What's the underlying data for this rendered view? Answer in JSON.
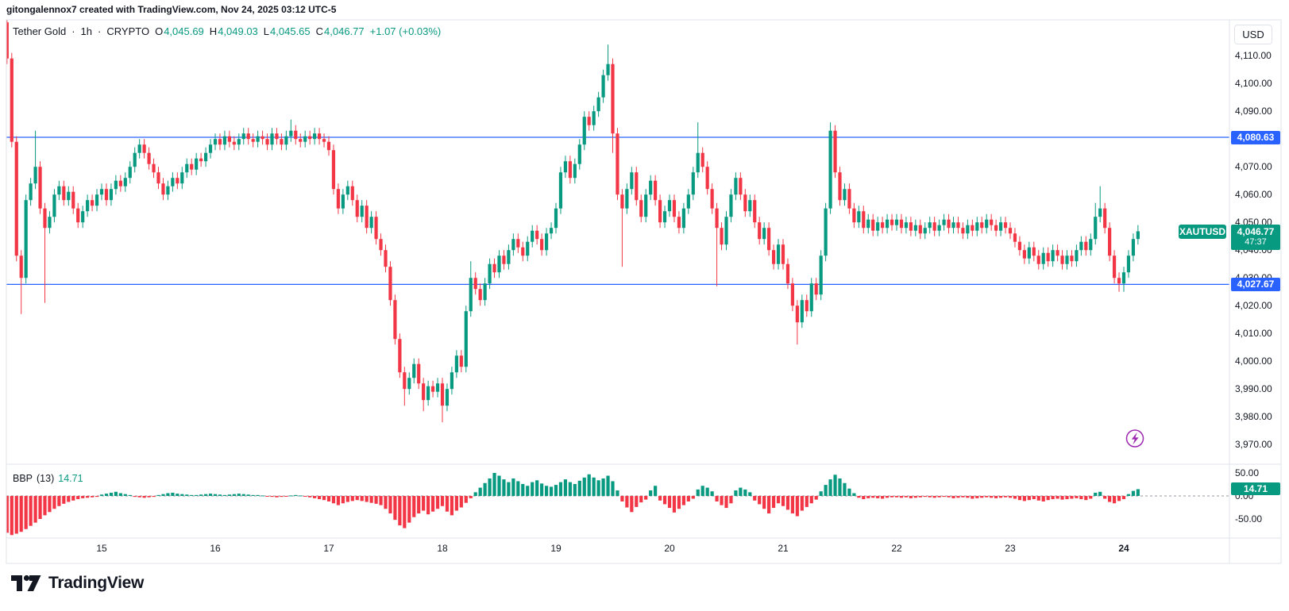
{
  "attribution": "gitongalennox7 created with TradingView.com, Nov 24, 2025 03:12 UTC-5",
  "header": {
    "title": "Tether Gold",
    "sep1": "·",
    "interval": "1h",
    "sep2": "·",
    "exchange": "CRYPTO",
    "o_label": "O",
    "o": "4,045.69",
    "h_label": "H",
    "h": "4,049.03",
    "l_label": "L",
    "l": "4,045.65",
    "c_label": "C",
    "c": "4,046.77",
    "change": "+1.07 (+0.03%)"
  },
  "price_axis": {
    "currency": "USD"
  },
  "indicator_legend": {
    "name": "BBP",
    "params": "(13)",
    "value": "14.71"
  },
  "logo": {
    "text": "TradingView"
  },
  "colors": {
    "up": "#089981",
    "down": "#F23645",
    "level_line": "#2962FF",
    "text": "#131722",
    "border": "#E0E3EB",
    "zero_dash": "#9598A1",
    "flash": "#9C27B0"
  },
  "chart_data": {
    "type": "candlestick",
    "title": "Tether Gold · 1h · CRYPTO",
    "symbol": "XAUTUSD",
    "interval": "1h",
    "x_labels": [
      "15",
      "16",
      "17",
      "18",
      "19",
      "20",
      "21",
      "22",
      "23",
      "24"
    ],
    "current_label_index": 9,
    "candles_per_day": 24,
    "first_label_candle_index": 20,
    "price_ylim": [
      3963,
      4118
    ],
    "price_ticks": [
      {
        "v": 4110,
        "label": "4,110.00"
      },
      {
        "v": 4100,
        "label": "4,100.00"
      },
      {
        "v": 4090,
        "label": "4,090.00"
      },
      {
        "v": 4070,
        "label": "4,070.00"
      },
      {
        "v": 4060,
        "label": "4,060.00"
      },
      {
        "v": 4050,
        "label": "4,050.00"
      },
      {
        "v": 4040,
        "label": "4,040.00"
      },
      {
        "v": 4030,
        "label": "4,030.00"
      },
      {
        "v": 4020,
        "label": "4,020.00"
      },
      {
        "v": 4010,
        "label": "4,010.00"
      },
      {
        "v": 4000,
        "label": "4,000.00"
      },
      {
        "v": 3990,
        "label": "3,990.00"
      },
      {
        "v": 3980,
        "label": "3,980.00"
      },
      {
        "v": 3970,
        "label": "3,970.00"
      }
    ],
    "levels": [
      {
        "v": 4080.63,
        "label": "4,080.63"
      },
      {
        "v": 4027.67,
        "label": "4,027.67"
      }
    ],
    "last": {
      "v": 4046.77,
      "label": "4,046.77",
      "countdown": "47:37",
      "tag": "XAUTUSD"
    },
    "first_open": 4122,
    "default_wick": 2,
    "closes": [
      4109,
      4079,
      4038,
      4030,
      4058,
      4064,
      4070,
      4055,
      4048,
      4052,
      4060,
      4063,
      4058,
      4061,
      4055,
      4050,
      4054,
      4058,
      4056,
      4060,
      4062,
      4058,
      4062,
      4065,
      4063,
      4066,
      4070,
      4075,
      4078,
      4075,
      4071,
      4068,
      4064,
      4060,
      4063,
      4066,
      4064,
      4068,
      4071,
      4069,
      4073,
      4072,
      4075,
      4078,
      4080,
      4078,
      4081,
      4079,
      4078,
      4080,
      4082,
      4080,
      4079,
      4081,
      4080,
      4078,
      4082,
      4080,
      4078,
      4081,
      4083,
      4080,
      4079,
      4081,
      4080,
      4082,
      4080,
      4079,
      4076,
      4062,
      4055,
      4060,
      4063,
      4058,
      4052,
      4056,
      4048,
      4052,
      4044,
      4040,
      4034,
      4022,
      4008,
      3996,
      3990,
      3994,
      3999,
      3992,
      3986,
      3991,
      3989,
      3992,
      3984,
      3990,
      3996,
      4002,
      3998,
      4018,
      4030,
      4026,
      4022,
      4028,
      4035,
      4032,
      4038,
      4035,
      4040,
      4044,
      4041,
      4038,
      4043,
      4047,
      4044,
      4040,
      4046,
      4048,
      4055,
      4068,
      4072,
      4066,
      4071,
      4078,
      4088,
      4085,
      4090,
      4095,
      4103,
      4107,
      4082,
      4060,
      4055,
      4062,
      4068,
      4058,
      4052,
      4060,
      4065,
      4058,
      4050,
      4054,
      4058,
      4052,
      4048,
      4055,
      4060,
      4068,
      4075,
      4070,
      4062,
      4055,
      4048,
      4042,
      4052,
      4060,
      4066,
      4060,
      4054,
      4058,
      4050,
      4044,
      4048,
      4040,
      4035,
      4042,
      4035,
      4028,
      4020,
      4014,
      4022,
      4018,
      4028,
      4024,
      4038,
      4055,
      4083,
      4068,
      4058,
      4062,
      4055,
      4050,
      4054,
      4048,
      4051,
      4047,
      4050,
      4048,
      4051,
      4049,
      4051,
      4048,
      4050,
      4047,
      4049,
      4046,
      4048,
      4050,
      4047,
      4049,
      4051,
      4048,
      4050,
      4048,
      4046,
      4049,
      4047,
      4050,
      4048,
      4051,
      4049,
      4047,
      4050,
      4048,
      4046,
      4043,
      4040,
      4037,
      4041,
      4038,
      4035,
      4039,
      4036,
      4040,
      4038,
      4035,
      4038,
      4036,
      4040,
      4043,
      4040,
      4044,
      4052,
      4055,
      4048,
      4038,
      4030,
      4028,
      4032,
      4038,
      4044,
      4046.77
    ],
    "wick_overrides": {
      "0": [
        4123,
        null
      ],
      "3": [
        null,
        4017
      ],
      "6": [
        4083,
        null
      ],
      "8": [
        null,
        4021
      ],
      "60": [
        4087,
        null
      ],
      "84": [
        null,
        3984
      ],
      "88": [
        null,
        3982
      ],
      "92": [
        null,
        3978
      ],
      "98": [
        4036,
        null
      ],
      "127": [
        4114,
        null
      ],
      "128": [
        null,
        4075
      ],
      "130": [
        null,
        4034
      ],
      "146": [
        4086,
        null
      ],
      "150": [
        null,
        4027
      ],
      "167": [
        null,
        4006
      ],
      "174": [
        4086,
        null
      ],
      "230": [
        4057,
        null
      ],
      "231": [
        4063,
        null
      ],
      "235": [
        null,
        4025
      ],
      "236": [
        null,
        4025
      ],
      "239": [
        4049.03,
        null
      ]
    },
    "indicator": {
      "type": "histogram",
      "name": "BBP",
      "length": 13,
      "ylim": [
        -85,
        55
      ],
      "ticks": [
        {
          "v": 50,
          "label": "50.00"
        },
        {
          "v": 0,
          "label": "0.00"
        },
        {
          "v": -50,
          "label": "-50.00"
        }
      ],
      "last": {
        "v": 14.71,
        "label": "14.71"
      },
      "values": [
        -80,
        -85,
        -82,
        -78,
        -72,
        -65,
        -58,
        -50,
        -42,
        -35,
        -28,
        -22,
        -17,
        -13,
        -10,
        -7,
        -5,
        -4,
        -3,
        -2,
        3,
        5,
        7,
        9,
        6,
        4,
        2,
        -2,
        -3,
        -4,
        -3,
        -2,
        2,
        4,
        6,
        7,
        5,
        4,
        3,
        2,
        2,
        3,
        4,
        5,
        4,
        3,
        2,
        3,
        4,
        5,
        4,
        3,
        2,
        2,
        1,
        -1,
        -2,
        -3,
        -2,
        -1,
        1,
        2,
        1,
        -1,
        -3,
        -5,
        -7,
        -9,
        -12,
        -16,
        -20,
        -16,
        -13,
        -11,
        -9,
        -11,
        -13,
        -15,
        -17,
        -20,
        -28,
        -38,
        -52,
        -64,
        -70,
        -58,
        -46,
        -38,
        -32,
        -40,
        -34,
        -28,
        -22,
        -34,
        -42,
        -32,
        -25,
        -15,
        -5,
        8,
        18,
        28,
        38,
        50,
        44,
        36,
        30,
        38,
        32,
        26,
        22,
        30,
        34,
        27,
        22,
        20,
        24,
        30,
        36,
        30,
        26,
        33,
        40,
        47,
        40,
        34,
        38,
        44,
        32,
        12,
        -12,
        -25,
        -35,
        -24,
        -14,
        -8,
        12,
        22,
        -10,
        -18,
        -26,
        -36,
        -28,
        -20,
        -12,
        -6,
        14,
        22,
        18,
        10,
        -12,
        -20,
        -26,
        -16,
        12,
        18,
        14,
        8,
        -10,
        -18,
        -28,
        -38,
        -26,
        -16,
        -22,
        -30,
        -38,
        -44,
        -32,
        -24,
        -16,
        -8,
        10,
        24,
        36,
        46,
        38,
        28,
        16,
        6,
        -4,
        -7,
        -5,
        -4,
        -5,
        -6,
        -4,
        -3,
        -3,
        -4,
        -3,
        -5,
        -4,
        -3,
        -2,
        -3,
        -4,
        -3,
        -2,
        -3,
        -5,
        -4,
        -3,
        -4,
        -6,
        -5,
        -4,
        -3,
        -4,
        -5,
        -4,
        -3,
        -4,
        -6,
        -9,
        -11,
        -9,
        -7,
        -10,
        -12,
        -9,
        -7,
        -6,
        -8,
        -7,
        -6,
        -5,
        -7,
        -9,
        -6,
        7,
        9,
        -6,
        -13,
        -16,
        -11,
        -7,
        4,
        11,
        14.71
      ]
    }
  }
}
